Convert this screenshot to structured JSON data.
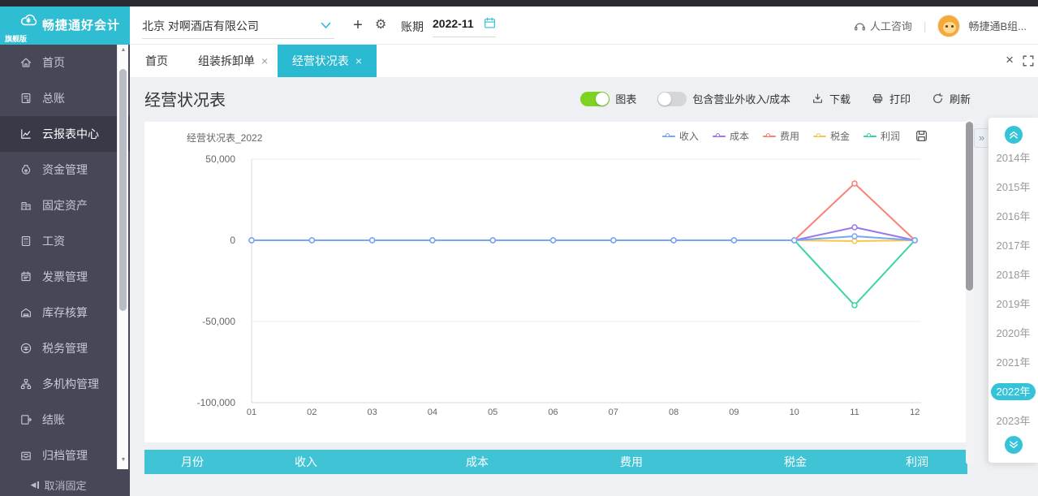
{
  "brand": {
    "name": "畅捷通好会计",
    "edition": "旗舰版"
  },
  "topbar": {
    "company": "北京 对啊酒店有限公司",
    "period_label": "账期",
    "period_value": "2022-11",
    "support_label": "人工咨询",
    "user_label": "畅捷通B组..."
  },
  "icons": {
    "close": "×",
    "plus": "+",
    "gear": "⚙",
    "collapse_right": "»",
    "scroll_up": "▲",
    "scroll_down": "▼",
    "divider": "|",
    "unpin_arrow": "◀"
  },
  "sidebar": {
    "items": [
      {
        "label": "首页"
      },
      {
        "label": "总账"
      },
      {
        "label": "云报表中心"
      },
      {
        "label": "资金管理"
      },
      {
        "label": "固定资产"
      },
      {
        "label": "工资"
      },
      {
        "label": "发票管理"
      },
      {
        "label": "库存核算"
      },
      {
        "label": "税务管理"
      },
      {
        "label": "多机构管理"
      },
      {
        "label": "结账"
      },
      {
        "label": "归档管理"
      }
    ],
    "active_item": "云报表中心",
    "unpin_label": "取消固定"
  },
  "tabs": [
    {
      "label": "首页",
      "closable": false,
      "active": false
    },
    {
      "label": "组装拆卸单",
      "closable": true,
      "active": false
    },
    {
      "label": "经营状况表",
      "closable": true,
      "active": true
    }
  ],
  "page": {
    "title": "经营状况表",
    "toolbar": {
      "chart_toggle_label": "图表",
      "chart_toggle_on": true,
      "include_toggle_label": "包含营业外收入/成本",
      "include_toggle_on": false,
      "download_label": "下载",
      "print_label": "打印",
      "refresh_label": "刷新"
    }
  },
  "chart_data": {
    "type": "line",
    "title": "经营状况表_2022",
    "x": [
      "01",
      "02",
      "03",
      "04",
      "05",
      "06",
      "07",
      "08",
      "09",
      "10",
      "11",
      "12"
    ],
    "ylim": [
      -100000,
      50000
    ],
    "yticks": [
      {
        "value": 50000,
        "label": "50,000"
      },
      {
        "value": 0,
        "label": "0"
      },
      {
        "value": -50000,
        "label": "-50,000"
      },
      {
        "value": -100000,
        "label": "-100,000"
      }
    ],
    "legend_position": "top-right",
    "grid": true,
    "series": [
      {
        "name": "收入",
        "color": "#78a6f7",
        "values": [
          0,
          0,
          0,
          0,
          0,
          0,
          0,
          0,
          0,
          0,
          2500,
          0
        ]
      },
      {
        "name": "成本",
        "color": "#9877ec",
        "values": [
          0,
          0,
          0,
          0,
          0,
          0,
          0,
          0,
          0,
          0,
          8000,
          0
        ]
      },
      {
        "name": "费用",
        "color": "#f88277",
        "values": [
          0,
          0,
          0,
          0,
          0,
          0,
          0,
          0,
          0,
          0,
          35000,
          0
        ]
      },
      {
        "name": "税金",
        "color": "#f6c64a",
        "values": [
          0,
          0,
          0,
          0,
          0,
          0,
          0,
          0,
          0,
          0,
          -500,
          0
        ]
      },
      {
        "name": "利润",
        "color": "#35d3a5",
        "values": [
          0,
          0,
          0,
          0,
          0,
          0,
          0,
          0,
          0,
          0,
          -40000,
          0
        ]
      }
    ]
  },
  "table": {
    "headers": [
      "月份",
      "收入",
      "成本",
      "费用",
      "税金",
      "利润"
    ]
  },
  "year_panel": {
    "years": [
      "2014年",
      "2015年",
      "2016年",
      "2017年",
      "2018年",
      "2019年",
      "2020年",
      "2021年",
      "2022年",
      "2023年"
    ],
    "selected": "2022年"
  },
  "colors": {
    "brand_cyan": "#2fbdd3",
    "tab_active": "#29b9d0",
    "table_header": "#3fc3d5",
    "toggle_on_green": "#7ed321",
    "sidebar_bg": "#474757",
    "sidebar_active_bg": "#393947"
  }
}
